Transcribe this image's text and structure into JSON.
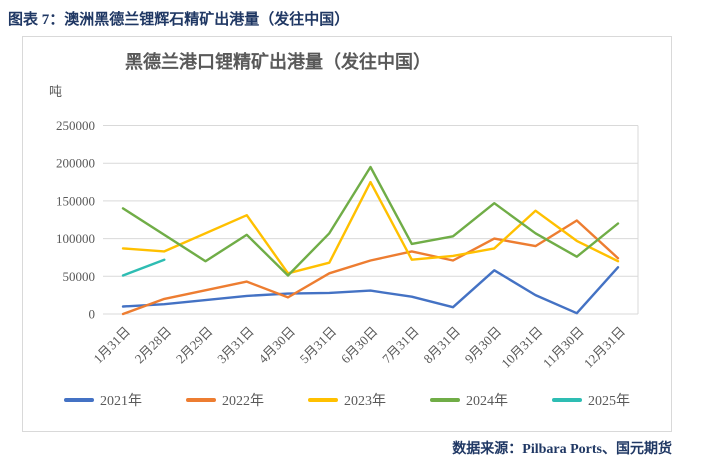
{
  "theme": {
    "navy": "#203864",
    "text_gray": "#595959",
    "grid_color": "#d9d9d9"
  },
  "header": {
    "figure_label": "图表 7：澳洲黑德兰锂辉石精矿出港量（发往中国）"
  },
  "chart": {
    "title": "黑德兰港口锂精矿出港量（发往中国）",
    "unit": "吨"
  },
  "chart_data": {
    "type": "line",
    "title": "黑德兰港口锂精矿出港量（发往中国）",
    "xlabel": "",
    "ylabel": "吨",
    "ylim": [
      0,
      250000
    ],
    "ytick_step": 50000,
    "ytick_labels": [
      "0",
      "50000",
      "100000",
      "150000",
      "200000",
      "250000"
    ],
    "grid": "horizontal",
    "legend_position": "bottom",
    "categories": [
      "1月31日",
      "2月28日",
      "2月29日",
      "3月31日",
      "4月30日",
      "5月31日",
      "6月30日",
      "7月31日",
      "8月31日",
      "9月30日",
      "10月31日",
      "11月30日",
      "12月31日"
    ],
    "series": [
      {
        "name": "2021年",
        "color": "#4472C4",
        "values": [
          10000,
          13000,
          null,
          24000,
          27000,
          28000,
          31000,
          23000,
          9000,
          58000,
          25000,
          1000,
          62000
        ]
      },
      {
        "name": "2022年",
        "color": "#ED7D31",
        "values": [
          0,
          20000,
          null,
          43000,
          22000,
          54000,
          71000,
          83000,
          71000,
          100000,
          90000,
          124000,
          74000
        ]
      },
      {
        "name": "2023年",
        "color": "#FFC000",
        "values": [
          87000,
          83000,
          null,
          131000,
          54000,
          68000,
          175000,
          72000,
          77000,
          87000,
          137000,
          97000,
          70000
        ]
      },
      {
        "name": "2024年",
        "color": "#70AD47",
        "values": [
          140000,
          null,
          70000,
          105000,
          51000,
          107000,
          195000,
          93000,
          103000,
          147000,
          107000,
          76000,
          120000
        ]
      },
      {
        "name": "2025年",
        "color": "#2EBDB3",
        "values": [
          51000,
          72000,
          null,
          null,
          null,
          null,
          null,
          null,
          null,
          null,
          null,
          null,
          null
        ]
      }
    ]
  },
  "footer": {
    "source": "数据来源：Pilbara Ports、国元期货"
  }
}
